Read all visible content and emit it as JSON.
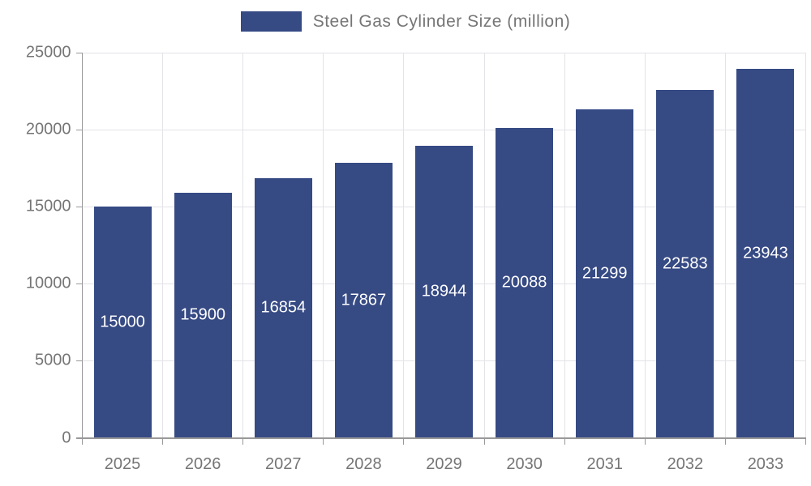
{
  "chart_data": {
    "type": "bar",
    "title": "Steel Gas Cylinder Size (million)",
    "legend": [
      "Steel Gas Cylinder Size (million)"
    ],
    "legend_position": "top-center",
    "categories": [
      "2025",
      "2026",
      "2027",
      "2028",
      "2029",
      "2030",
      "2031",
      "2032",
      "2033"
    ],
    "series": [
      {
        "name": "Steel Gas Cylinder Size (million)",
        "values": [
          15000,
          15900,
          16854,
          17867,
          18944,
          20088,
          21299,
          22583,
          23943
        ]
      }
    ],
    "bar_value_labels": [
      "15000",
      "15900",
      "16854",
      "17867",
      "18944",
      "20088",
      "21299",
      "22583",
      "23943"
    ],
    "xlabel": "",
    "ylabel": "",
    "ylim": [
      0,
      25000
    ],
    "yticks": [
      "0",
      "5000",
      "10000",
      "15000",
      "20000",
      "25000"
    ],
    "grid": true,
    "colors": {
      "bar": "#364a84",
      "bar_label_text": "#ffffff",
      "axis_line": "#999999",
      "gridline": "#e3e3e8",
      "axis_text": "#757575",
      "legend_text": "#767676",
      "background": "#ffffff"
    }
  }
}
